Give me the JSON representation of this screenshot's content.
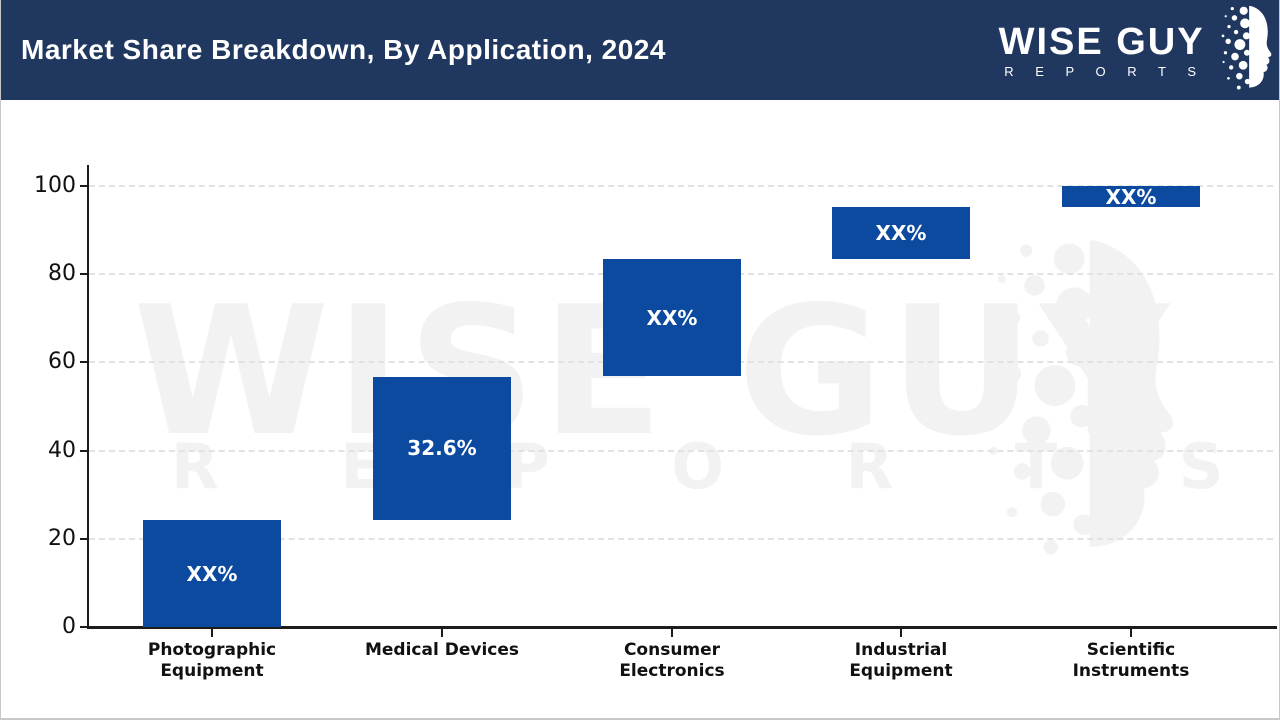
{
  "header": {
    "title": "Market Share Breakdown, By Application, 2024",
    "bg_color": "#20375f",
    "logo": {
      "line1": "WISE GUY",
      "line2": "R E P O R T S"
    }
  },
  "watermark": {
    "line1": "WISE GUY",
    "line2": "R E P O R T S"
  },
  "chart_data": {
    "type": "bar",
    "subtype": "waterfall",
    "title": "Market Share Breakdown, By Application, 2024",
    "categories": [
      "Photographic\nEquipment",
      "Medical Devices",
      "Consumer\nElectronics",
      "Industrial\nEquipment",
      "Scientific\nInstruments"
    ],
    "segments": [
      {
        "category": "Photographic Equipment",
        "start": 0,
        "end": 24.2,
        "label": "XX%"
      },
      {
        "category": "Medical Devices",
        "start": 24.2,
        "end": 56.8,
        "label": "32.6%",
        "value": 32.6
      },
      {
        "category": "Consumer Electronics",
        "start": 56.8,
        "end": 83.5,
        "label": "XX%"
      },
      {
        "category": "Industrial Equipment",
        "start": 83.5,
        "end": 95.2,
        "label": "XX%"
      },
      {
        "category": "Scientific Instruments",
        "start": 95.2,
        "end": 100,
        "label": "XX%"
      }
    ],
    "yticks": [
      0,
      20,
      40,
      60,
      80,
      100
    ],
    "ylim": [
      0,
      104.8
    ],
    "grid": "horizontal-dashed",
    "legend": "none",
    "xlabel": "",
    "ylabel": "",
    "bar_color": "#0c4aa0",
    "bar_label_color": "#ffffff",
    "axis_color": "#1c1c1c",
    "grid_color": "#e2e2e2"
  }
}
